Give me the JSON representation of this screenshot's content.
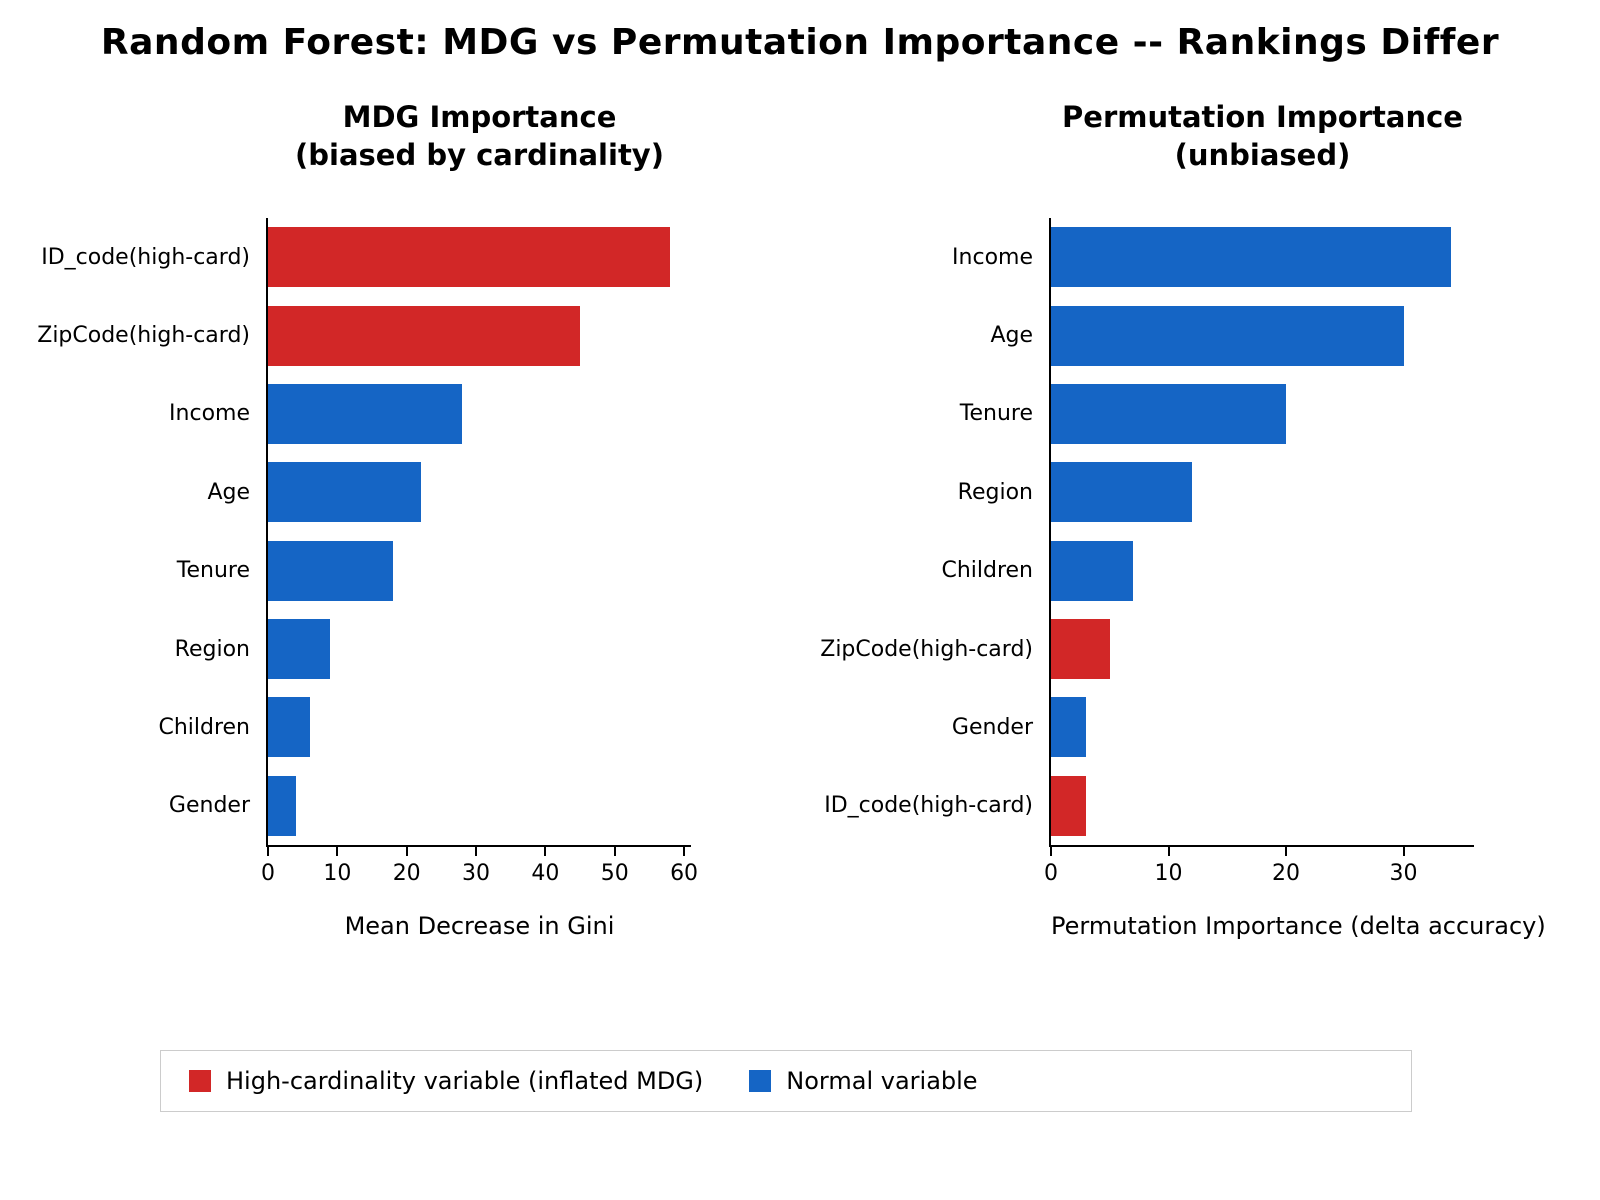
{
  "page_title": "Random Forest: MDG vs Permutation Importance -- Rankings Differ",
  "colors": {
    "high_card": "#d22727",
    "normal": "#1565c5",
    "axis": "#000000",
    "legend_border": "#cccccc"
  },
  "legend": {
    "items": [
      {
        "label": "High-cardinality variable (inflated MDG)",
        "color_key": "high_card"
      },
      {
        "label": "Normal variable",
        "color_key": "normal"
      }
    ]
  },
  "chart_data": [
    {
      "type": "bar",
      "orientation": "horizontal",
      "title_lines": [
        "MDG Importance",
        "(biased by cardinality)"
      ],
      "xlabel": "Mean Decrease in Gini",
      "xlim": [
        0,
        61
      ],
      "xticks": [
        0,
        10,
        20,
        30,
        40,
        50,
        60
      ],
      "grid": false,
      "categories": [
        "ID_code(high-card)",
        "ZipCode(high-card)",
        "Income",
        "Age",
        "Tenure",
        "Region",
        "Children",
        "Gender"
      ],
      "values": [
        58,
        45,
        28,
        22,
        18,
        9,
        6,
        4
      ],
      "bar_types": [
        "high_card",
        "high_card",
        "normal",
        "normal",
        "normal",
        "normal",
        "normal",
        "normal"
      ]
    },
    {
      "type": "bar",
      "orientation": "horizontal",
      "title_lines": [
        "Permutation Importance",
        "(unbiased)"
      ],
      "xlabel": "Permutation Importance (delta accuracy)",
      "xlim": [
        0,
        36
      ],
      "xticks": [
        0,
        10,
        20,
        30
      ],
      "grid": false,
      "categories": [
        "Income",
        "Age",
        "Tenure",
        "Region",
        "Children",
        "ZipCode(high-card)",
        "Gender",
        "ID_code(high-card)"
      ],
      "values": [
        34,
        30,
        20,
        12,
        7,
        5,
        3,
        3
      ],
      "bar_types": [
        "normal",
        "normal",
        "normal",
        "normal",
        "normal",
        "high_card",
        "normal",
        "high_card"
      ]
    }
  ]
}
